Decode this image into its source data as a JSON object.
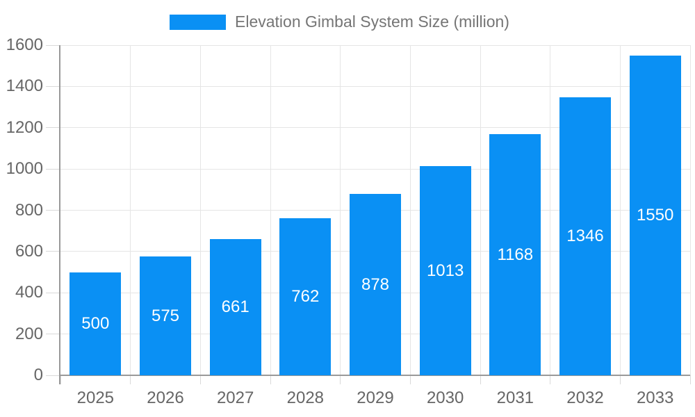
{
  "legend": {
    "label": "Elevation Gimbal System Size (million)"
  },
  "chart_data": {
    "type": "bar",
    "title": "Elevation Gimbal System Size (million)",
    "series": [
      {
        "name": "Elevation Gimbal System Size (million)",
        "values": [
          500,
          575,
          661,
          762,
          878,
          1013,
          1168,
          1346,
          1550
        ]
      }
    ],
    "categories": [
      "2025",
      "2026",
      "2027",
      "2028",
      "2029",
      "2030",
      "2031",
      "2032",
      "2033"
    ],
    "values": [
      500,
      575,
      661,
      762,
      878,
      1013,
      1168,
      1346,
      1550
    ],
    "value_labels": [
      "500",
      "575",
      "661",
      "762",
      "878",
      "1013",
      "1168",
      "1346",
      "1550"
    ],
    "xlabel": "",
    "ylabel": "",
    "ylim": [
      0,
      1600
    ],
    "yticks": [
      0,
      200,
      400,
      600,
      800,
      1000,
      1200,
      1400,
      1600
    ],
    "grid": true,
    "legend_position": "top-center",
    "bar_labels_inside": true
  },
  "colors": {
    "bar": "#0a90f4",
    "axis_line": "#999999",
    "gridline": "#e5e5e5",
    "tick": "#d9d9d9",
    "axis_label": "#666666",
    "legend_text": "#757575",
    "value_label": "#ffffff",
    "background": "#ffffff"
  }
}
